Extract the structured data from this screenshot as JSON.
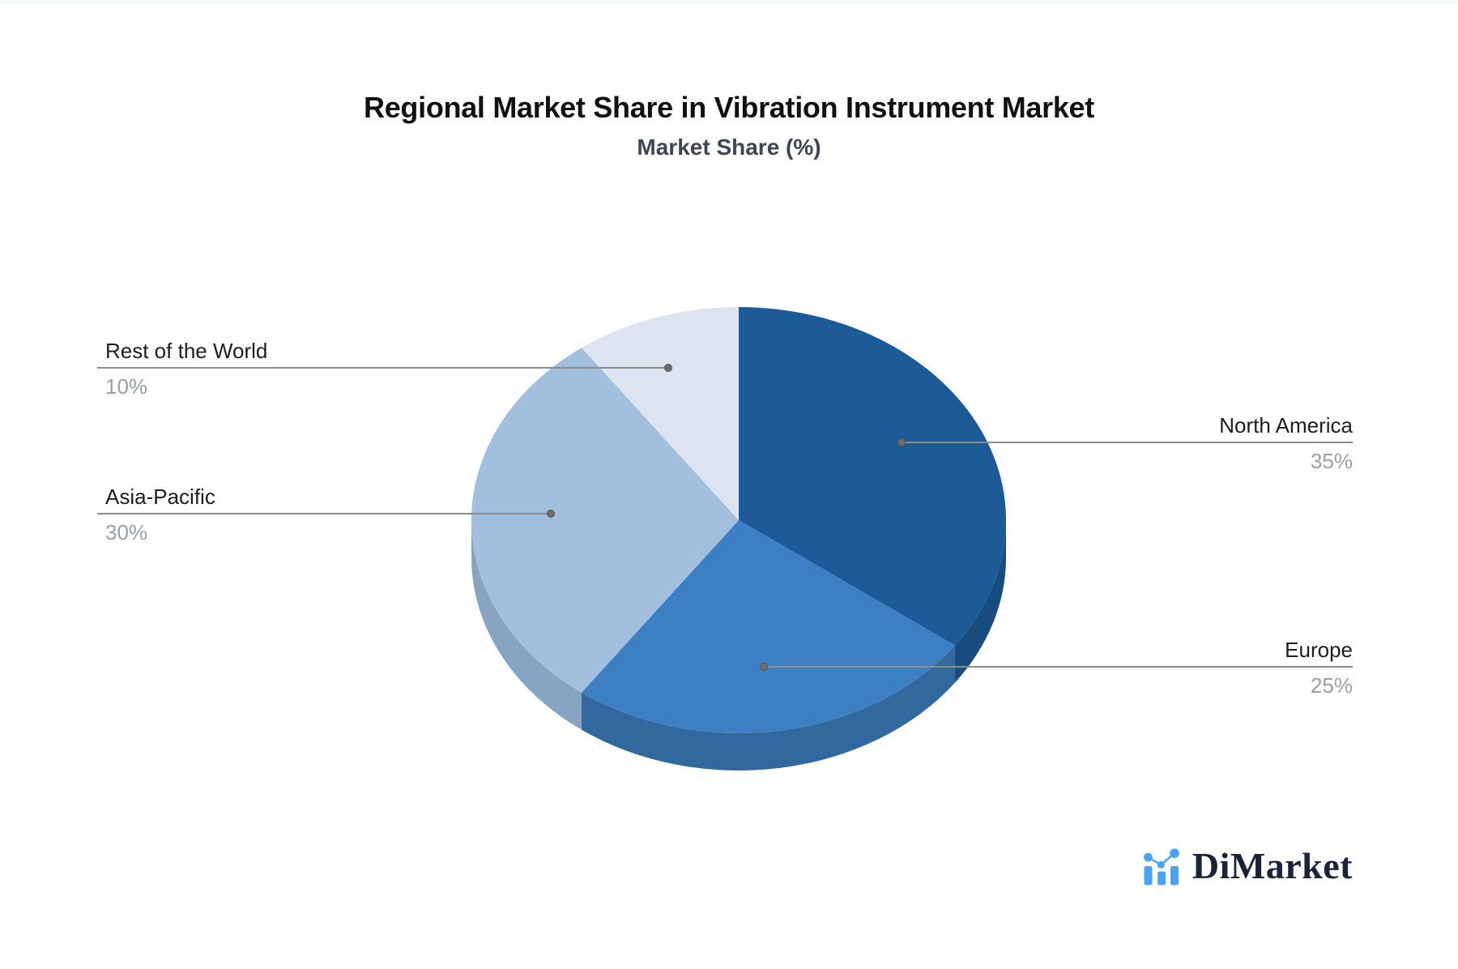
{
  "window": {
    "background": "#ffffff",
    "top_strip_color": "#f6f8f9"
  },
  "chart_data": {
    "type": "pie",
    "title": "Regional Market Share in Vibration Instrument Market",
    "subtitle": "Market Share (%)",
    "value_suffix": "%",
    "style_3d": true,
    "start_angle": "12 o'clock",
    "direction": "clockwise",
    "legend_position": "callout-labels",
    "slices": [
      {
        "label": "North America",
        "value": 35,
        "display_value": "35%",
        "color": "#1c5b97",
        "side_color": "#164c80"
      },
      {
        "label": "Europe",
        "value": 25,
        "display_value": "25%",
        "color": "#3c80c3",
        "side_color": "#31699f"
      },
      {
        "label": "Asia-Pacific",
        "value": 30,
        "display_value": "30%",
        "color": "#a2bfdd",
        "side_color": "#87a4c3"
      },
      {
        "label": "Rest of the World",
        "value": 10,
        "display_value": "10%",
        "color": "#dde4f0",
        "side_color": "#bcc8d9"
      }
    ],
    "callout_line_color": "#8c8c8c",
    "callout_dot_color": "#6d6d6d",
    "label_color": "#1d1d1d",
    "value_color": "#9aa0a6"
  },
  "branding": {
    "name": "DiMarket",
    "icon": "bar-line-chart-icon",
    "icon_color": "#4aa3f2",
    "text_color": "#1a2338"
  }
}
